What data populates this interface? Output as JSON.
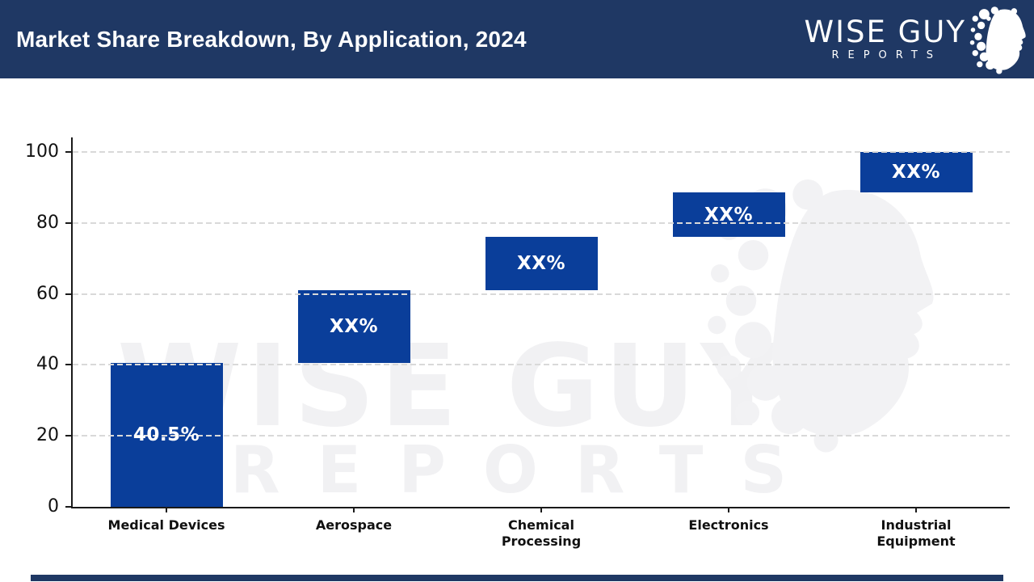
{
  "header": {
    "title": "Market Share Breakdown, By Application, 2024",
    "bg_color": "#1f3864",
    "logo": {
      "wordmark": "WISE GUY",
      "subtext": "REPORTS"
    }
  },
  "watermark": {
    "line1": "WISE GUY",
    "line2": "REPORTS"
  },
  "chart_data": {
    "type": "bar",
    "subtype": "waterfall",
    "title": "Market Share Breakdown, By Application, 2024",
    "xlabel": "",
    "ylabel": "",
    "ylim": [
      0,
      100
    ],
    "yticks": [
      0,
      20,
      40,
      60,
      80,
      100
    ],
    "grid": true,
    "bar_color": "#0a3e9a",
    "label_color": "#ffffff",
    "categories": [
      "Medical Devices",
      "Aerospace",
      "Chemical\nProcessing",
      "Electronics",
      "Industrial\nEquipment"
    ],
    "values": [
      40.5,
      20.5,
      15.0,
      12.5,
      11.5
    ],
    "segments": [
      {
        "category": "Medical Devices",
        "start": 0,
        "end": 40.5,
        "label": "40.5%"
      },
      {
        "category": "Aerospace",
        "start": 40.5,
        "end": 61.0,
        "label": "XX%"
      },
      {
        "category": "Chemical\nProcessing",
        "start": 61.0,
        "end": 76.0,
        "label": "XX%"
      },
      {
        "category": "Electronics",
        "start": 76.0,
        "end": 88.5,
        "label": "XX%"
      },
      {
        "category": "Industrial\nEquipment",
        "start": 88.5,
        "end": 100.0,
        "label": "XX%"
      }
    ]
  }
}
